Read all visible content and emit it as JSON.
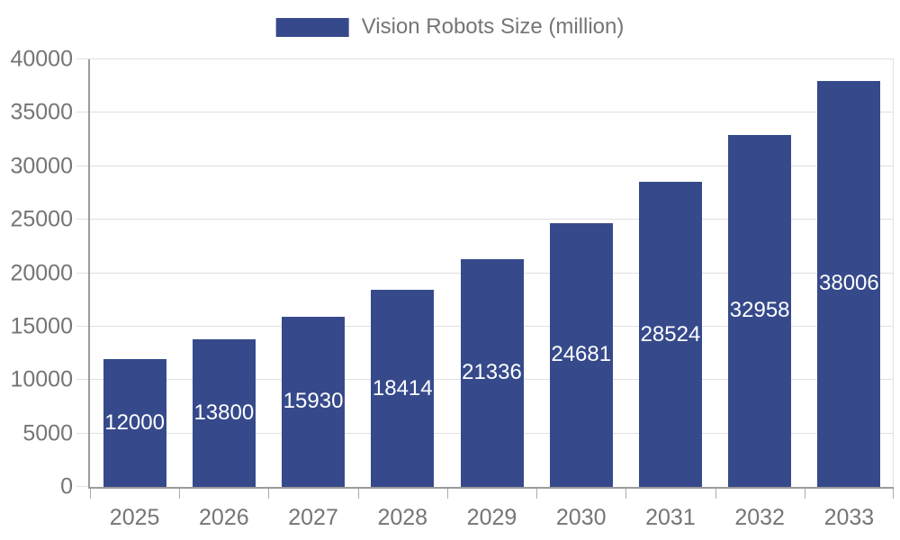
{
  "legend": {
    "label": "Vision Robots Size (million)"
  },
  "colors": {
    "bar": "#364a8b",
    "axis": "#9b9b9b",
    "grid": "#e0e0e0",
    "x_tick": "#ababab",
    "tick_label": "#757575",
    "legend_text": "#757575",
    "value_label": "#ffffff",
    "background": "#ffffff"
  },
  "chart_data": {
    "type": "bar",
    "title": "Vision Robots Size (million)",
    "series_name": "Vision Robots Size (million)",
    "categories": [
      "2025",
      "2026",
      "2027",
      "2028",
      "2029",
      "2030",
      "2031",
      "2032",
      "2033"
    ],
    "values": [
      12000,
      13800,
      15930,
      18414,
      21336,
      24681,
      28524,
      32958,
      38006
    ],
    "xlabel": "",
    "ylabel": "",
    "ylim": [
      0,
      40000
    ],
    "y_ticks": [
      0,
      5000,
      10000,
      15000,
      20000,
      25000,
      30000,
      35000,
      40000
    ],
    "grid": true,
    "legend_position": "top-center",
    "value_label_position": "inside-middle"
  }
}
